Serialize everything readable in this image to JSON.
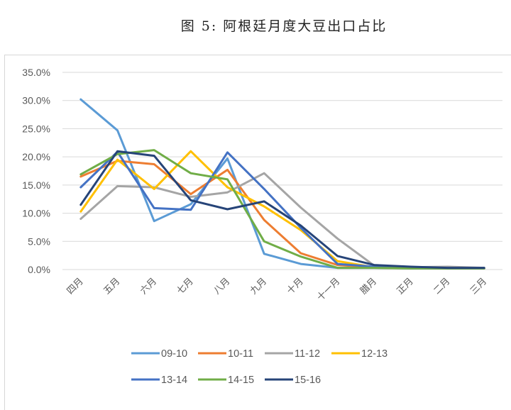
{
  "title": "图 5:  阿根廷月度大豆出口占比",
  "chart_data": {
    "type": "line",
    "title": "图 5: 阿根廷月度大豆出口占比",
    "xlabel": "",
    "ylabel": "",
    "ylim": [
      0,
      35
    ],
    "yticks": [
      "0.0%",
      "5.0%",
      "10.0%",
      "15.0%",
      "20.0%",
      "25.0%",
      "30.0%",
      "35.0%"
    ],
    "grid": true,
    "legend_position": "bottom",
    "categories": [
      "四月",
      "五月",
      "六月",
      "七月",
      "八月",
      "九月",
      "十月",
      "十一月",
      "腊月",
      "正月",
      "二月",
      "三月"
    ],
    "series": [
      {
        "name": "09-10",
        "color": "#5b9bd5",
        "values": [
          30.2,
          24.7,
          8.6,
          11.6,
          19.7,
          2.8,
          1.0,
          0.3,
          0.3,
          0.2,
          0.2,
          0.2
        ]
      },
      {
        "name": "10-11",
        "color": "#ed7d31",
        "values": [
          16.5,
          19.3,
          18.7,
          13.4,
          17.7,
          8.8,
          2.9,
          0.8,
          0.4,
          0.3,
          0.2,
          0.2
        ]
      },
      {
        "name": "11-12",
        "color": "#a5a5a5",
        "values": [
          9.0,
          14.8,
          14.6,
          12.9,
          13.7,
          17.1,
          11.0,
          5.5,
          0.7,
          0.4,
          0.5,
          0.3
        ]
      },
      {
        "name": "12-13",
        "color": "#ffc000",
        "values": [
          10.3,
          19.5,
          14.3,
          21.0,
          14.6,
          11.2,
          7.0,
          1.5,
          0.4,
          0.3,
          0.2,
          0.2
        ]
      },
      {
        "name": "13-14",
        "color": "#4472c4",
        "values": [
          14.6,
          20.9,
          10.9,
          10.6,
          20.8,
          14.3,
          7.4,
          1.0,
          0.5,
          0.3,
          0.2,
          0.2
        ]
      },
      {
        "name": "14-15",
        "color": "#70ad47",
        "values": [
          16.9,
          20.5,
          21.2,
          17.1,
          16.0,
          5.0,
          2.3,
          0.3,
          0.3,
          0.2,
          0.2,
          0.2
        ]
      },
      {
        "name": "15-16",
        "color": "#264478",
        "values": [
          11.5,
          21.0,
          20.2,
          12.3,
          10.7,
          12.1,
          7.8,
          2.4,
          0.8,
          0.5,
          0.3,
          0.3
        ]
      }
    ]
  },
  "legend": {
    "rows": [
      [
        "09-10",
        "10-11",
        "11-12",
        "12-13"
      ],
      [
        "13-14",
        "14-15",
        "15-16"
      ]
    ]
  }
}
